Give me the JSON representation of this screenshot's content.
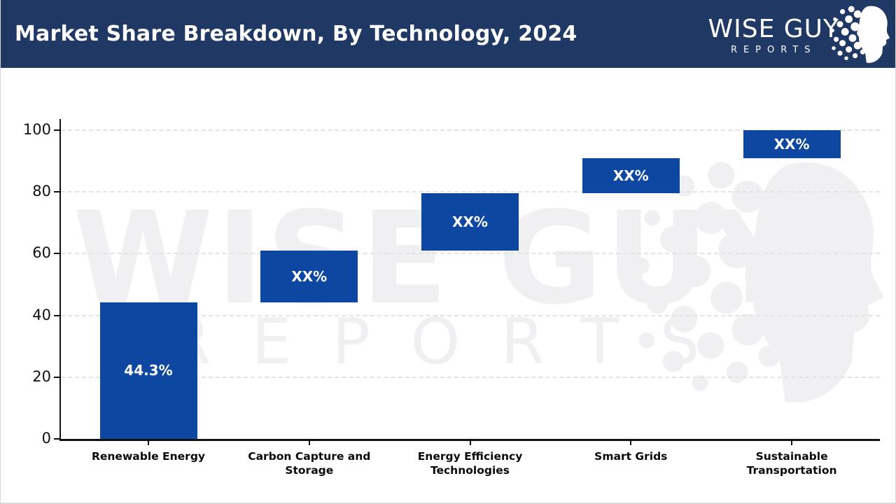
{
  "header": {
    "title": "Market Share Breakdown, By Technology, 2024",
    "logo": {
      "line1": "WISE GUY",
      "line2": "REPORTS"
    }
  },
  "watermark": {
    "line1": "WISE GUY",
    "line2": "REPORTS"
  },
  "colors": {
    "header_bg": "#1F3864",
    "bar": "#0D47A1",
    "grid": "#e3e3e4",
    "axis": "#111111",
    "label_on_bar": "#ffffff",
    "watermark": "#f0f0f2",
    "page_border": "#d9d9d9"
  },
  "chart_data": {
    "type": "bar",
    "subtype": "waterfall",
    "title": "Market Share Breakdown, By Technology, 2024",
    "categories": [
      "Renewable Energy",
      "Carbon Capture and Storage",
      "Energy Efficiency Technologies",
      "Smart Grids",
      "Sustainable Transportation"
    ],
    "series": [
      {
        "name": "Market Share (%)",
        "segments": [
          {
            "from": 0,
            "to": 44.3,
            "label": "44.3%"
          },
          {
            "from": 44.3,
            "to": 61.0,
            "label": "XX%"
          },
          {
            "from": 61.0,
            "to": 79.5,
            "label": "XX%"
          },
          {
            "from": 79.5,
            "to": 91.0,
            "label": "XX%"
          },
          {
            "from": 91.0,
            "to": 100.0,
            "label": "XX%"
          }
        ]
      }
    ],
    "xlabel": "",
    "ylabel": "",
    "ylim": [
      0,
      100
    ],
    "yticks": [
      0,
      20,
      40,
      60,
      80,
      100
    ],
    "grid": "horizontal-dashed",
    "legend": "none"
  }
}
